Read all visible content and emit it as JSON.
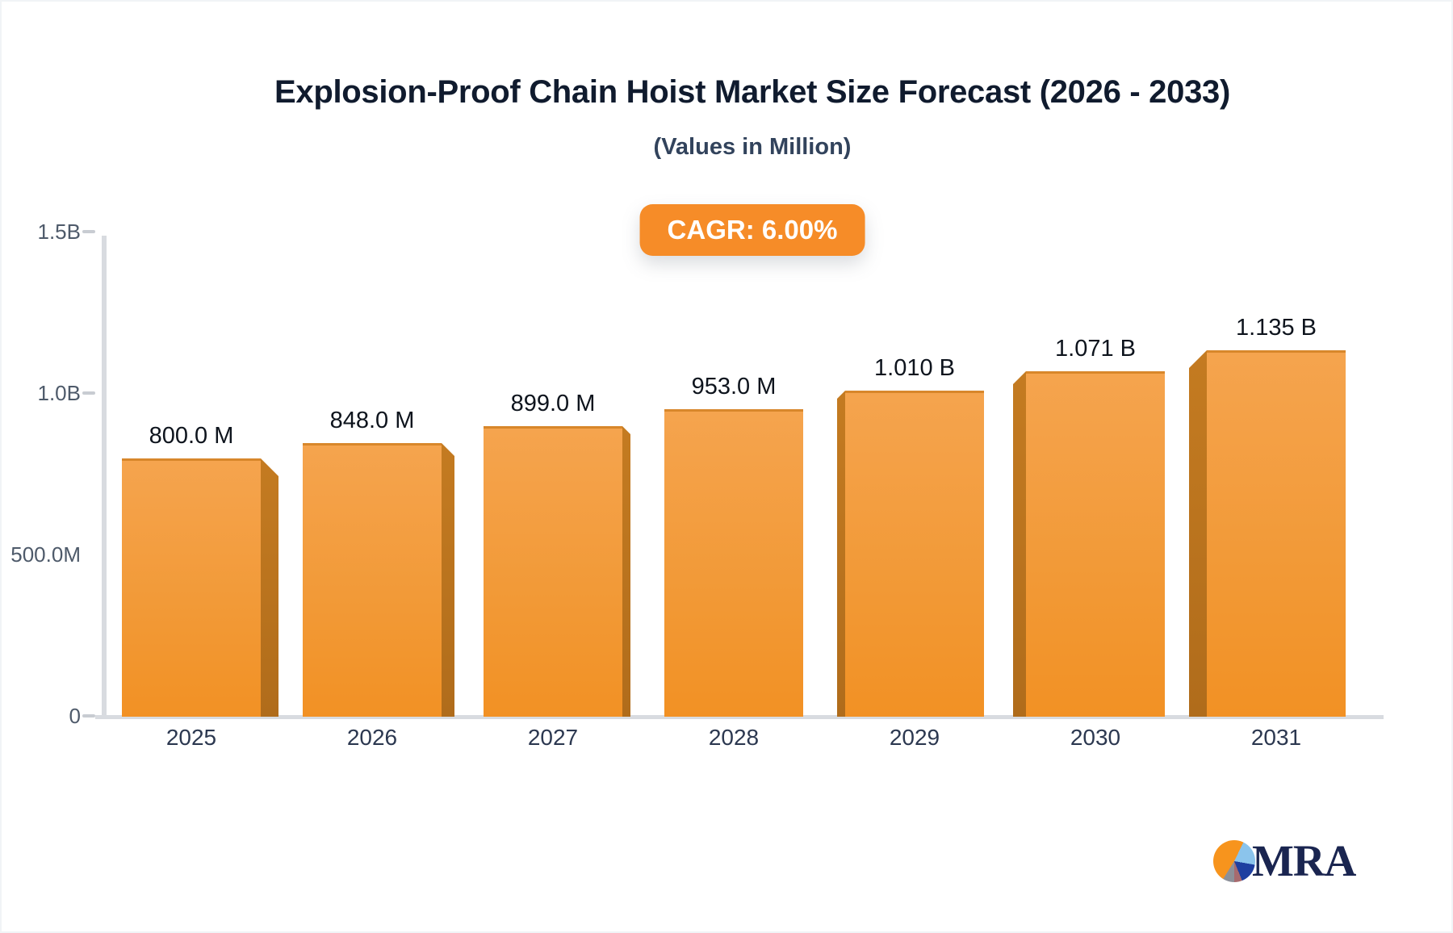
{
  "header": {
    "title": "Explosion-Proof Chain Hoist Market Size Forecast (2026 - 2033)",
    "subtitle": "(Values in Million)"
  },
  "badge": {
    "label": "CAGR: 6.00%"
  },
  "chart_data": {
    "type": "bar",
    "title": "Explosion-Proof Chain Hoist Market Size Forecast (2026 - 2033)",
    "subtitle": "(Values in Million)",
    "categories": [
      "2025",
      "2026",
      "2027",
      "2028",
      "2029",
      "2030",
      "2031"
    ],
    "values_millions": [
      800,
      848,
      899,
      953,
      1010,
      1071,
      1135
    ],
    "value_labels": [
      "800.0 M",
      "848.0 M",
      "899.0 M",
      "953.0 M",
      "1.010 B",
      "1.071 B",
      "1.135 B"
    ],
    "xlabel": "",
    "ylabel": "",
    "ylim": [
      0,
      1500
    ],
    "y_axis_ticks": [
      {
        "label": "0",
        "value": 0,
        "dash": true
      },
      {
        "label": "500.0M",
        "value": 500,
        "dash": false
      },
      {
        "label": "1.0B",
        "value": 1000,
        "dash": true
      },
      {
        "label": "1.5B",
        "value": 1500,
        "dash": true
      }
    ],
    "grid": false,
    "legend": false,
    "bar_style": "3d-perspective-from-center"
  },
  "colors": {
    "bar_face_top": "#f5a44e",
    "bar_face_bottom": "#f29124",
    "bar_side": "#b8701e",
    "badge_bg": "#f68c28",
    "axis_line": "#d8dbe0",
    "title_text": "#101b2e",
    "subtitle_text": "#32435c",
    "tick_text": "#4e5a6a",
    "value_label_text": "#0e141d",
    "logo_navy": "#1a2550",
    "logo_orange": "#f7941d"
  },
  "logo": {
    "text": "MRA"
  }
}
